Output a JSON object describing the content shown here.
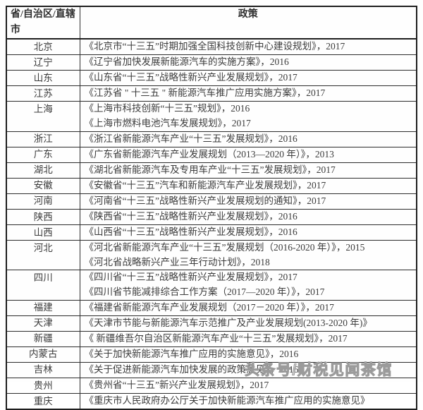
{
  "colors": {
    "outer_border": "#1e1e1e",
    "inner_border": "#2c2c2c",
    "text": "#3c3c3c",
    "watermark_stroke": "#9b9b9b",
    "background": "#fefefe"
  },
  "table": {
    "headers": {
      "province": "省/自治区/直辖市",
      "policy": "政策"
    },
    "rows": [
      {
        "province": "北京",
        "policies": [
          "《北京市“十三五”时期加强全国科技创新中心建设规划》，2017"
        ]
      },
      {
        "province": "辽宁",
        "policies": [
          "《辽宁省加快发展新能源汽车的实施方案》，2016"
        ]
      },
      {
        "province": "山东",
        "policies": [
          "《山东省“十三五”战略性新兴产业发展规划》，2017"
        ]
      },
      {
        "province": "江苏",
        "policies": [
          "《江苏省 \" 十三五 \" 新能源汽车推广应用实施方案》，2017"
        ]
      },
      {
        "province": "上海",
        "policies": [
          "《上海市科技创新“十三五”规划》，2016",
          "《上海市燃料电池汽车发展规划》，2017"
        ]
      },
      {
        "province": "浙江",
        "policies": [
          "《浙江省新能源汽车产业“十三五”发展规划》，2016"
        ]
      },
      {
        "province": "广东",
        "policies": [
          "《广东省新能源汽车产业发展规划（2013—2020 年）》，2013"
        ]
      },
      {
        "province": "湖北",
        "policies": [
          "《湖北省新能源汽车及专用车产业“十三五”发展规划》，2017"
        ]
      },
      {
        "province": "安徽",
        "policies": [
          "《安徽省“十三五”汽车和新能源汽车产业发展规划》，2017"
        ]
      },
      {
        "province": "河南",
        "policies": [
          "《河南省“十三五”战略性新兴产业发展规划的通知》，2017"
        ]
      },
      {
        "province": "陕西",
        "policies": [
          "《陕西省“十三五”战略性新兴产业发展规划》，2016"
        ]
      },
      {
        "province": "山西",
        "policies": [
          "《山西省“十三五”战略性新兴产业发展规划》，2016"
        ]
      },
      {
        "province": "河北",
        "policies": [
          "《河北省新能源汽车产业“十三五”发展规划（2016-2020 年）》，2015",
          "《河北省战略新兴产业三年行动计划》，2018"
        ]
      },
      {
        "province": "四川",
        "policies": [
          "《四川省“十三五”战略性新兴产业发展规划》，2017",
          "《四川省节能减排综合工作方案（2017—2020 年）》，2017"
        ]
      },
      {
        "province": "福建",
        "policies": [
          "《福建省新能源汽车产业发展规划（2017－2020 年）》，2017"
        ]
      },
      {
        "province": "天津",
        "policies": [
          "《天津市节能与新能源汽车示范推广及产业发展规划(2013-2020 年)》"
        ]
      },
      {
        "province": "新疆",
        "policies": [
          "《 新疆维吾尔自治区新能源汽车产业“十三五”发展规划》，2017"
        ]
      },
      {
        "province": "内蒙古",
        "policies": [
          "《关于加快新能源汽车推广应用的实施意见》，2016"
        ]
      },
      {
        "province": "吉林",
        "policies": [
          "《关于促进新能源汽车加快发展的政策意见》，2016"
        ]
      },
      {
        "province": "贵州",
        "policies": [
          "《贵州省“十三五”新兴产业发展规划》，2017"
        ]
      },
      {
        "province": "重庆",
        "policies": [
          "《重庆市人民政府办公厅关于加快新能源汽车推广应用的实施意见》"
        ]
      }
    ]
  },
  "watermark": {
    "text": "头条号/财税见闻茶馆"
  }
}
